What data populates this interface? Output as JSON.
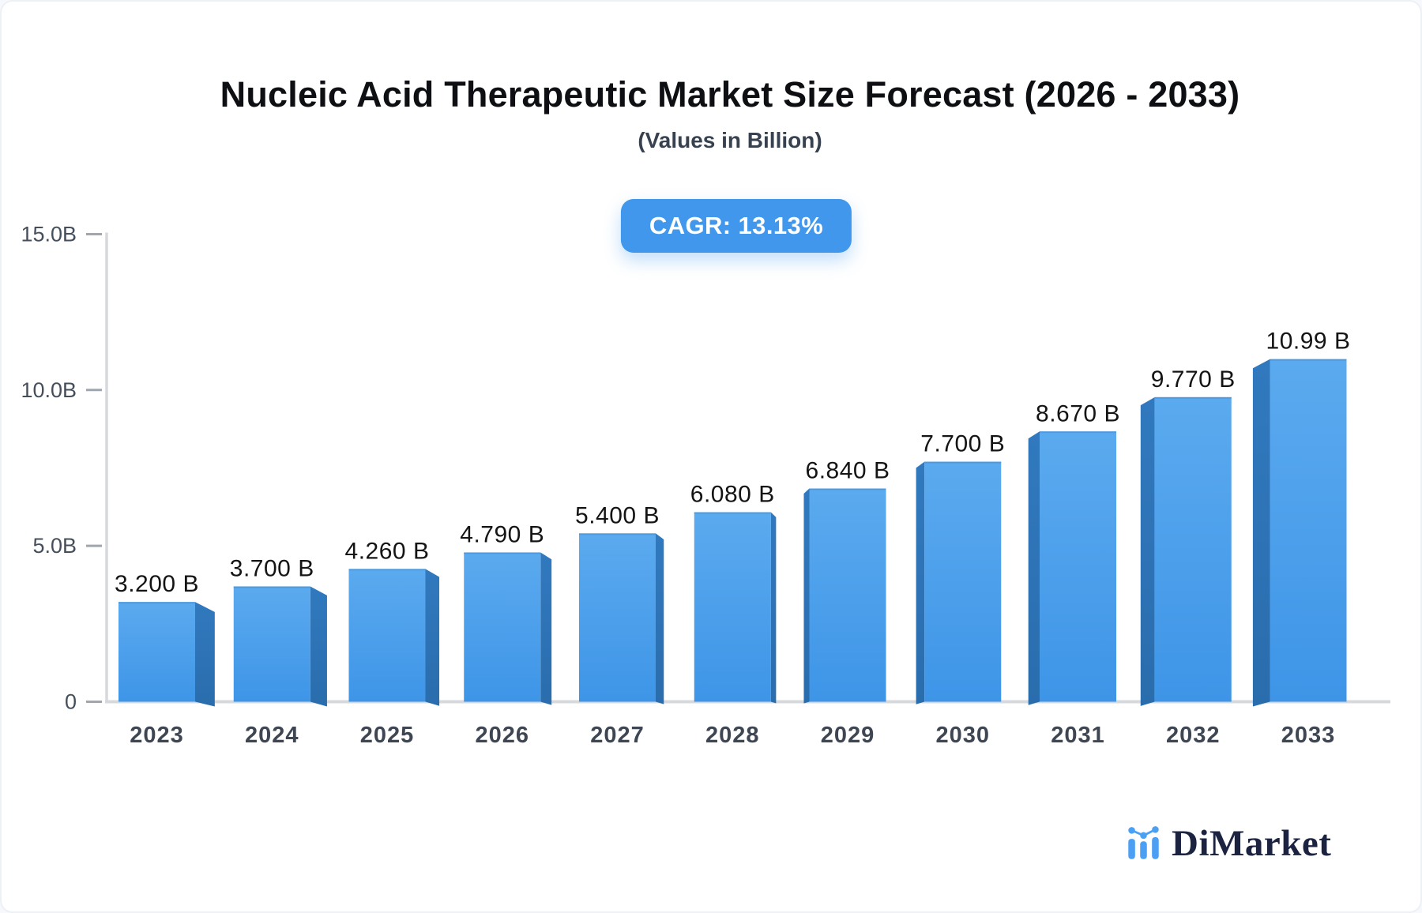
{
  "title": "Nucleic Acid Therapeutic Market Size Forecast (2026 - 2033)",
  "subtitle": "(Values in Billion)",
  "badge": {
    "label": "CAGR: 13.13%"
  },
  "brand": {
    "name": "DiMarket",
    "icon": "dimarket-bars-icon"
  },
  "colors": {
    "badge-bg": "#4097ec",
    "bar-face-top": "#5baaef",
    "bar-face-bottom": "#3e95e7",
    "bar-side-top": "#3179be",
    "bar-side-bottom": "#2a6dad",
    "bar-top-edge": "#4e9adf",
    "axis-line": "#d5d8dc",
    "tick-dash": "#9fa6ad",
    "axis-label": "#454f5b",
    "year-label": "#3d4652",
    "value-label": "#141414",
    "brand-blue": "#4ba0f4",
    "brand-navy": "#1b2340"
  },
  "chart_data": {
    "type": "bar",
    "style": "3d-perspective-bars",
    "title": "Nucleic Acid Therapeutic Market Size Forecast (2026 - 2033)",
    "subtitle": "(Values in Billion)",
    "annotation": "CAGR: 13.13%",
    "categories": [
      "2023",
      "2024",
      "2025",
      "2026",
      "2027",
      "2028",
      "2029",
      "2030",
      "2031",
      "2032",
      "2033"
    ],
    "values": [
      3.2,
      3.7,
      4.26,
      4.79,
      5.4,
      6.08,
      6.84,
      7.7,
      8.67,
      9.77,
      10.99
    ],
    "value_labels": [
      "3.200 B",
      "3.700 B",
      "4.260 B",
      "4.790 B",
      "5.400 B",
      "6.080 B",
      "6.840 B",
      "7.700 B",
      "8.670 B",
      "9.770 B",
      "10.99 B"
    ],
    "xlabel": "",
    "ylabel": "",
    "unit": "Billion",
    "ylim": [
      0,
      15
    ],
    "yticks": [
      {
        "value": 0,
        "label": "0"
      },
      {
        "value": 5,
        "label": "5.0B"
      },
      {
        "value": 10,
        "label": "10.0B"
      },
      {
        "value": 15,
        "label": "15.0B"
      }
    ],
    "grid": false,
    "legend": false
  }
}
